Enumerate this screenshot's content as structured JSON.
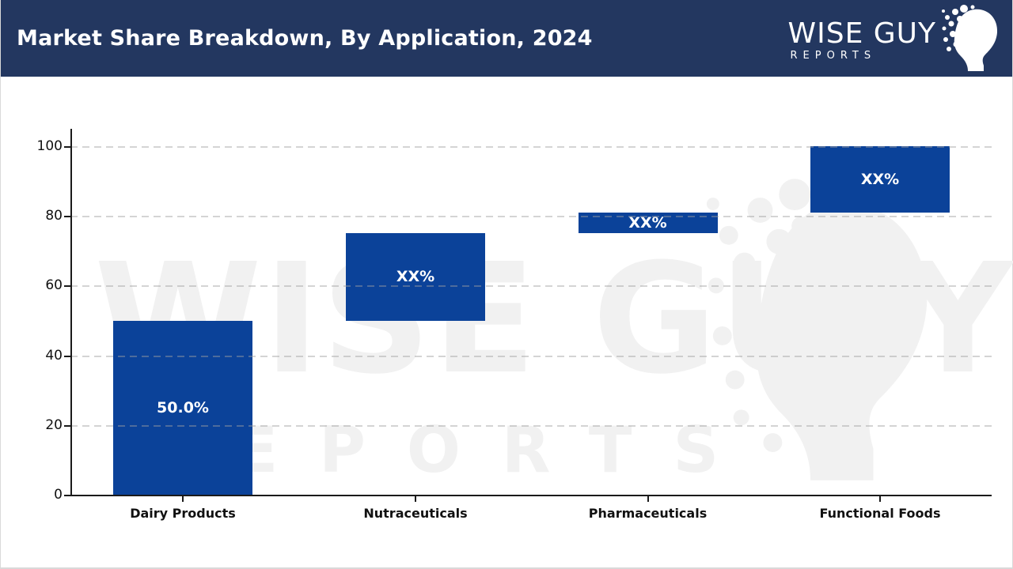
{
  "header": {
    "title": "Market Share Breakdown, By Application, 2024",
    "logo": {
      "brand": "WISE GUY",
      "sub": "REPORTS"
    }
  },
  "watermark": {
    "line1": "WISE GU·Y",
    "line2": "REPORTS"
  },
  "colors": {
    "header_bg": "#233760",
    "bar": "#0b4299",
    "axis": "#1a1a1a",
    "grid": "#d9d9d9",
    "bar_label": "#ffffff",
    "watermark": "#f1f1f1"
  },
  "chart_data": {
    "type": "bar",
    "subtype": "waterfall",
    "title": "Market Share Breakdown, By Application, 2024",
    "categories": [
      "Dairy Products",
      "Nutraceuticals",
      "Pharmaceuticals",
      "Functional Foods"
    ],
    "segments": [
      {
        "category": "Dairy Products",
        "start": 0,
        "end": 50,
        "value": 50.0,
        "label": "50.0%"
      },
      {
        "category": "Nutraceuticals",
        "start": 50,
        "end": 75,
        "value": 25,
        "label": "XX%"
      },
      {
        "category": "Pharmaceuticals",
        "start": 75,
        "end": 81,
        "value": 6,
        "label": "XX%"
      },
      {
        "category": "Functional Foods",
        "start": 81,
        "end": 100,
        "value": 19,
        "label": "XX%"
      }
    ],
    "yticks": [
      0,
      20,
      40,
      60,
      80,
      100
    ],
    "ylim": [
      0,
      100
    ],
    "xlabel": "",
    "ylabel": "",
    "grid": "horizontal-dashed",
    "legend": "none"
  }
}
